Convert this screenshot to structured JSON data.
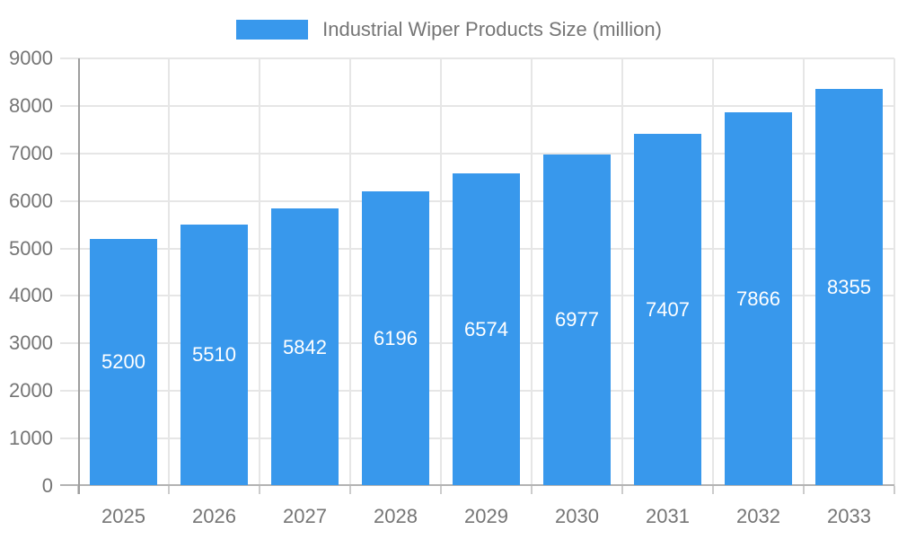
{
  "chart_data": {
    "type": "bar",
    "title": "Industrial Wiper Products Size (million)",
    "categories": [
      "2025",
      "2026",
      "2027",
      "2028",
      "2029",
      "2030",
      "2031",
      "2032",
      "2033"
    ],
    "values": [
      5200,
      5510,
      5842,
      6196,
      6574,
      6977,
      7407,
      7866,
      8355
    ],
    "series": [
      {
        "name": "Industrial Wiper Products Size (million)",
        "values": [
          5200,
          5510,
          5842,
          6196,
          6574,
          6977,
          7407,
          7866,
          8355
        ]
      }
    ],
    "xlabel": "",
    "ylabel": "",
    "ylim": [
      0,
      9000
    ],
    "ytick_step": 1000,
    "grid": true,
    "legend_position": "top",
    "colors": {
      "bar": "#3898EC",
      "value_label": "#ffffff",
      "axis_text": "#757575",
      "gridline": "#e6e6e6",
      "axis_line_y": "#9e9e9e",
      "axis_line_x": "#b3b3b3",
      "background": "#ffffff"
    }
  }
}
